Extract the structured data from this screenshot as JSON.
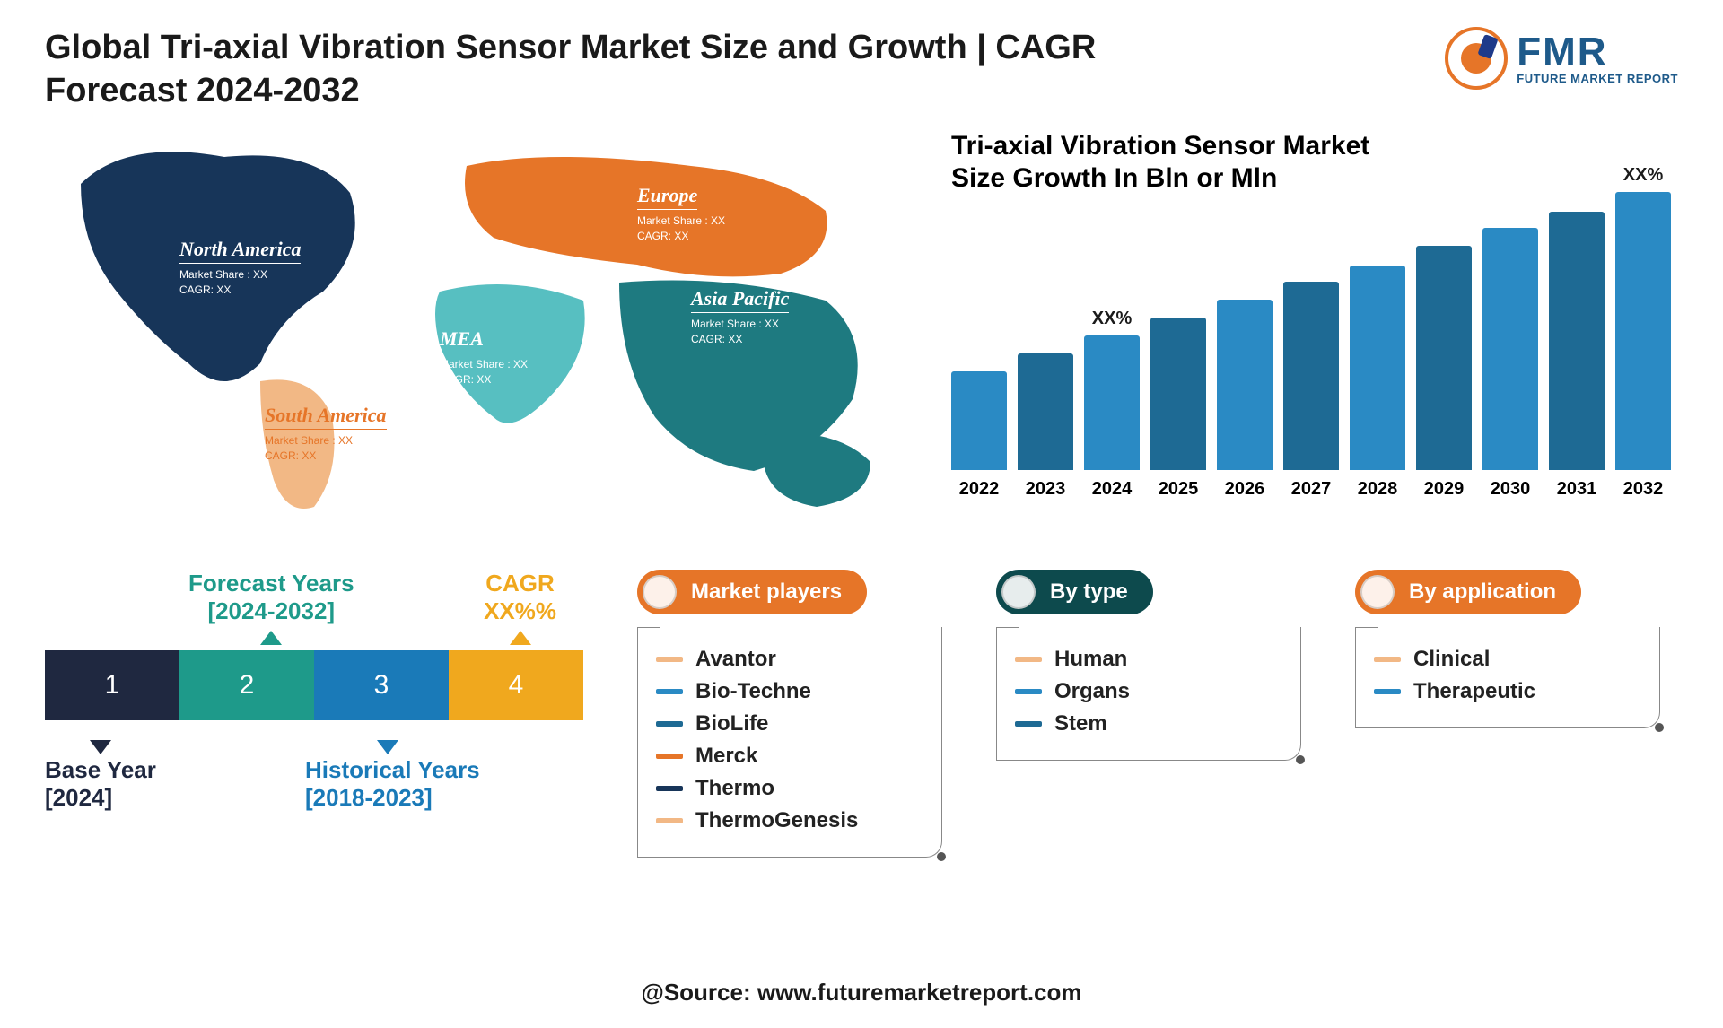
{
  "title": "Global Tri-axial Vibration Sensor Market Size and Growth | CAGR Forecast 2024-2032",
  "logo": {
    "fmr": "FMR",
    "sub": "FUTURE MARKET REPORT"
  },
  "map": {
    "regions": {
      "na": {
        "name": "North America",
        "share": "Market Share : XX",
        "cagr": "CAGR: XX",
        "color": "#173559"
      },
      "sa": {
        "name": "South America",
        "share": "Market Share : XX",
        "cagr": "CAGR: XX",
        "color": "#f2b885"
      },
      "eu": {
        "name": "Europe",
        "share": "Market Share : XX",
        "cagr": "CAGR: XX",
        "color": "#e67528"
      },
      "mea": {
        "name": "MEA",
        "share": "Market Share : XX",
        "cagr": "CAGR: XX",
        "color": "#57bfc1"
      },
      "ap": {
        "name": "Asia Pacific",
        "share": "Market Share : XX",
        "cagr": "CAGR: XX",
        "color": "#1e7a80"
      }
    }
  },
  "chart": {
    "title": "Tri-axial Vibration Sensor Market Size Growth In Bln or Mln",
    "years": [
      "2022",
      "2023",
      "2024",
      "2025",
      "2026",
      "2027",
      "2028",
      "2029",
      "2030",
      "2031",
      "2032"
    ],
    "heights": [
      110,
      130,
      150,
      170,
      190,
      210,
      228,
      250,
      270,
      288,
      310
    ],
    "bar_colors": [
      "#2a8ac4",
      "#1e6a94",
      "#2a8ac4",
      "#1e6a94",
      "#2a8ac4",
      "#1e6a94",
      "#2a8ac4",
      "#1e6a94",
      "#2a8ac4",
      "#1e6a94",
      "#2a8ac4"
    ],
    "tag_lo": {
      "index": 2,
      "text": "XX%"
    },
    "tag_hi": {
      "index": 10,
      "text": "XX%"
    }
  },
  "timeline": {
    "forecast_label": "Forecast Years",
    "forecast_range": "[2024-2032]",
    "cagr_label": "CAGR",
    "cagr_value": "XX%%",
    "segs": [
      "1",
      "2",
      "3",
      "4"
    ],
    "base_label": "Base Year",
    "base_range": "[2024]",
    "hist_label": "Historical Years",
    "hist_range": "[2018-2023]"
  },
  "tick_colors": [
    "#f2b885",
    "#2a8ac4",
    "#1e6a94",
    "#e67528",
    "#173559",
    "#f2b885"
  ],
  "cats": {
    "players": {
      "title": "Market players",
      "pill_bg": "#e67528",
      "items": [
        "Avantor",
        "Bio-Techne",
        "BioLife",
        "Merck",
        "Thermo",
        "ThermoGenesis"
      ]
    },
    "type": {
      "title": "By type",
      "pill_bg": "#0d4a4d",
      "items": [
        "Human",
        "Organs",
        "Stem"
      ]
    },
    "app": {
      "title": "By application",
      "pill_bg": "#e67528",
      "items": [
        "Clinical",
        "Therapeutic"
      ]
    }
  },
  "source": "@Source: www.futuremarketreport.com"
}
